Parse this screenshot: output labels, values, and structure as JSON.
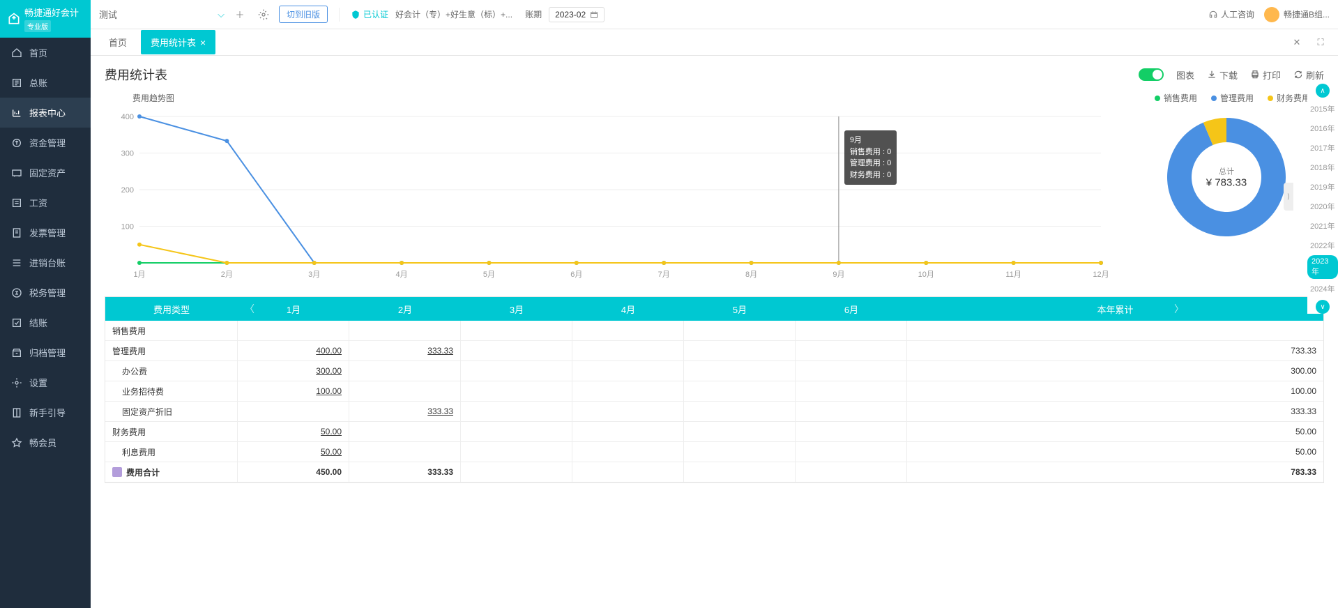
{
  "brand": {
    "name": "畅捷通好会计",
    "edition": "专业版"
  },
  "sidebar": [
    {
      "icon": "home",
      "label": "首页"
    },
    {
      "icon": "ledger",
      "label": "总账"
    },
    {
      "icon": "report",
      "label": "报表中心",
      "active": true
    },
    {
      "icon": "fund",
      "label": "资金管理"
    },
    {
      "icon": "asset",
      "label": "固定资产"
    },
    {
      "icon": "salary",
      "label": "工资"
    },
    {
      "icon": "invoice",
      "label": "发票管理"
    },
    {
      "icon": "psi",
      "label": "进销台账"
    },
    {
      "icon": "tax",
      "label": "税务管理"
    },
    {
      "icon": "close",
      "label": "结账"
    },
    {
      "icon": "archive",
      "label": "归档管理"
    },
    {
      "icon": "settings",
      "label": "设置"
    },
    {
      "icon": "guide",
      "label": "新手引导"
    },
    {
      "icon": "member",
      "label": "畅会员"
    }
  ],
  "topbar": {
    "company": "测试",
    "old_version": "切到旧版",
    "verified": "已认证",
    "plan": "好会计（专）+好生意（标）+...",
    "period_label": "账期",
    "period_value": "2023-02",
    "support": "人工咨询",
    "username": "畅捷通B组..."
  },
  "tabs": [
    {
      "label": "首页",
      "active": false
    },
    {
      "label": "费用统计表",
      "active": true,
      "closable": true
    }
  ],
  "page": {
    "title": "费用统计表",
    "actions": {
      "chart": "图表",
      "download": "下载",
      "print": "打印",
      "refresh": "刷新"
    }
  },
  "line_chart": {
    "title": "费用趋势图",
    "type": "line",
    "x_labels": [
      "1月",
      "2月",
      "3月",
      "4月",
      "5月",
      "6月",
      "7月",
      "8月",
      "9月",
      "10月",
      "11月",
      "12月"
    ],
    "y_ticks": [
      100,
      200,
      300,
      400
    ],
    "ylim": [
      0,
      400
    ],
    "series": [
      {
        "name": "销售费用",
        "color": "#13ce66",
        "values": [
          0,
          0,
          0,
          0,
          0,
          0,
          0,
          0,
          0,
          0,
          0,
          0
        ]
      },
      {
        "name": "管理费用",
        "color": "#4a90e2",
        "values": [
          400,
          333,
          0,
          0,
          0,
          0,
          0,
          0,
          0,
          0,
          0,
          0
        ]
      },
      {
        "name": "财务费用",
        "color": "#f5c518",
        "values": [
          50,
          0,
          0,
          0,
          0,
          0,
          0,
          0,
          0,
          0,
          0,
          0
        ]
      }
    ],
    "tooltip": {
      "x_index": 8,
      "title": "9月",
      "lines": [
        "销售费用 : 0",
        "管理费用 : 0",
        "财务费用 : 0"
      ]
    },
    "grid_color": "#eeeeee",
    "axis_color": "#cccccc"
  },
  "donut": {
    "center_label": "总计",
    "center_value": "¥ 783.33",
    "slices": [
      {
        "name": "管理费用",
        "value": 733.33,
        "color": "#4a90e2"
      },
      {
        "name": "财务费用",
        "value": 50.0,
        "color": "#f5c518"
      }
    ],
    "background": "#ffffff"
  },
  "legend": [
    {
      "label": "销售费用",
      "color": "#13ce66"
    },
    {
      "label": "管理费用",
      "color": "#4a90e2"
    },
    {
      "label": "财务费用",
      "color": "#f5c518"
    }
  ],
  "table": {
    "header_type": "费用类型",
    "months": [
      "1月",
      "2月",
      "3月",
      "4月",
      "5月",
      "6月"
    ],
    "header_total": "本年累计",
    "rows": [
      {
        "label": "销售费用",
        "indent": 0,
        "cells": [
          "",
          "",
          "",
          "",
          "",
          ""
        ],
        "total": "",
        "u": false
      },
      {
        "label": "管理费用",
        "indent": 0,
        "cells": [
          "400.00",
          "333.33",
          "",
          "",
          "",
          ""
        ],
        "total": "733.33",
        "u": true
      },
      {
        "label": "办公费",
        "indent": 1,
        "cells": [
          "300.00",
          "",
          "",
          "",
          "",
          ""
        ],
        "total": "300.00",
        "u": true
      },
      {
        "label": "业务招待费",
        "indent": 1,
        "cells": [
          "100.00",
          "",
          "",
          "",
          "",
          ""
        ],
        "total": "100.00",
        "u": true
      },
      {
        "label": "固定资产折旧",
        "indent": 1,
        "cells": [
          "",
          "333.33",
          "",
          "",
          "",
          ""
        ],
        "total": "333.33",
        "u": true
      },
      {
        "label": "财务费用",
        "indent": 0,
        "cells": [
          "50.00",
          "",
          "",
          "",
          "",
          ""
        ],
        "total": "50.00",
        "u": true
      },
      {
        "label": "利息费用",
        "indent": 1,
        "cells": [
          "50.00",
          "",
          "",
          "",
          "",
          ""
        ],
        "total": "50.00",
        "u": true
      }
    ],
    "total_row": {
      "label": "费用合计",
      "cells": [
        "450.00",
        "333.33",
        "",
        "",
        "",
        ""
      ],
      "total": "783.33"
    }
  },
  "years": {
    "list": [
      "2015年",
      "2016年",
      "2017年",
      "2018年",
      "2019年",
      "2020年",
      "2021年",
      "2022年",
      "2023年",
      "2024年"
    ],
    "active": "2023年"
  },
  "colors": {
    "primary": "#00c8d2",
    "sidebar_bg": "#1f2d3d"
  }
}
